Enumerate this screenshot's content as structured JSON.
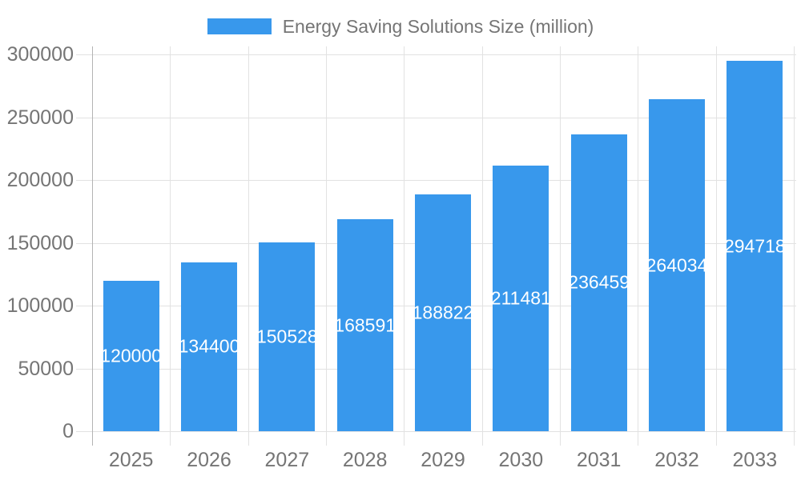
{
  "legend": {
    "label": "Energy Saving Solutions Size (million)"
  },
  "chart_data": {
    "type": "bar",
    "title": "Energy Saving Solutions Size (million)",
    "categories": [
      "2025",
      "2026",
      "2027",
      "2028",
      "2029",
      "2030",
      "2031",
      "2032",
      "2033"
    ],
    "values": [
      120000,
      134400,
      150528,
      168591,
      188822,
      211481,
      236459,
      264034,
      294718
    ],
    "bar_labels": [
      "120000",
      "134400",
      "150528",
      "168591",
      "188822",
      "211481",
      "236459",
      "264034",
      "294718"
    ],
    "xlabel": "",
    "ylabel": "",
    "ylim": [
      0,
      300000
    ],
    "yticks": [
      0,
      50000,
      100000,
      150000,
      200000,
      250000,
      300000
    ],
    "ytick_labels": [
      "0",
      "50000",
      "100000",
      "150000",
      "200000",
      "250000",
      "300000"
    ],
    "grid": true,
    "legend_position": "top",
    "colors": {
      "bar": "#3898ec",
      "bar_label": "#ffffff",
      "axis_text": "#757575",
      "legend_text": "#757575",
      "gridline": "#e2e2e2",
      "axis_line": "#b3b3b3",
      "background": "#ffffff"
    }
  }
}
